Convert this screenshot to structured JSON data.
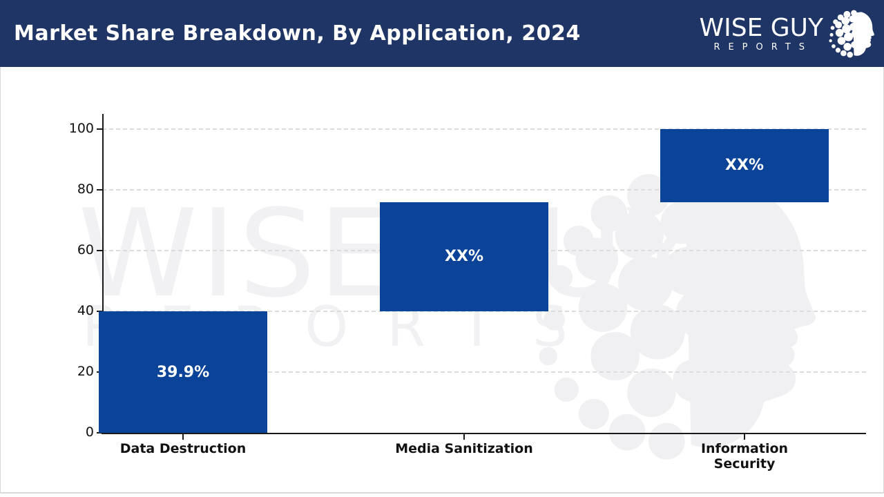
{
  "header": {
    "title": "Market Share Breakdown, By Application, 2024",
    "logo": {
      "wordmark": "WISE GUY",
      "subtitle": "REPORTS"
    }
  },
  "watermark": {
    "wordmark": "WISE GUY",
    "subtitle": "REPORTS"
  },
  "colors": {
    "header_bg": "#1f3566",
    "bar": "#0a4397",
    "axis": "#1a1a1a",
    "grid": "#dcdcdc",
    "bar_label": "#ffffff",
    "watermark": "#f1f1f3"
  },
  "chart_data": {
    "type": "bar",
    "subtype": "waterfall",
    "title": "Market Share Breakdown, By Application, 2024",
    "categories": [
      "Data Destruction",
      "Media Sanitization",
      "Information Security"
    ],
    "categories_display": [
      [
        "Data Destruction"
      ],
      [
        "Media Sanitization"
      ],
      [
        "Information",
        "Security"
      ]
    ],
    "series": [
      {
        "name": "Market Share %",
        "values": [
          39.9,
          36.0,
          24.1
        ]
      }
    ],
    "segments": [
      {
        "from": 0,
        "to": 39.9,
        "label": "39.9%"
      },
      {
        "from": 39.9,
        "to": 75.9,
        "label": "XX%"
      },
      {
        "from": 75.9,
        "to": 100,
        "label": "XX%"
      }
    ],
    "bar_labels": [
      "39.9%",
      "XX%",
      "XX%"
    ],
    "yticks": [
      0,
      20,
      40,
      60,
      80,
      100
    ],
    "ylim": [
      0,
      105
    ],
    "xlabel": "",
    "ylabel": "",
    "grid": "dashed-horizontal",
    "legend": "none",
    "bar_color": "#0a4397"
  }
}
